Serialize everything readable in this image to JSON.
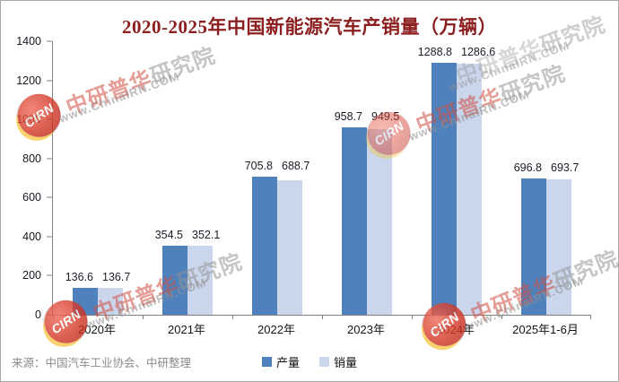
{
  "chart_data": {
    "type": "bar",
    "title": "2020-2025年中国新能源汽车产销量（万辆）",
    "title_color": "#8b1e1e",
    "categories": [
      "2020年",
      "2021年",
      "2022年",
      "2023年",
      "2024年",
      "2025年1-6月"
    ],
    "series": [
      {
        "name": "产量",
        "color": "#4f81bd",
        "values": [
          136.6,
          354.5,
          705.8,
          958.7,
          1288.8,
          696.8
        ]
      },
      {
        "name": "销量",
        "color": "#c9d6ec",
        "values": [
          136.7,
          352.1,
          688.7,
          949.5,
          1286.6,
          693.7
        ]
      }
    ],
    "ylim": [
      0,
      1400
    ],
    "yticks": [
      0,
      200,
      400,
      600,
      800,
      1000,
      1200,
      1400
    ],
    "grid": false,
    "legend_position": "bottom",
    "axis_color": "#7f7f7f"
  },
  "legend": {
    "items": [
      {
        "label": "产量",
        "color": "#4f81bd"
      },
      {
        "label": "销量",
        "color": "#c9d6ec"
      }
    ]
  },
  "source": {
    "label": "来源：中国汽车工业协会、中研整理"
  },
  "watermark": {
    "url": "www.ChinaIRN.COM",
    "brand_red": "中研普华",
    "brand_gray": "研究院",
    "logo_text": "CIRN"
  }
}
